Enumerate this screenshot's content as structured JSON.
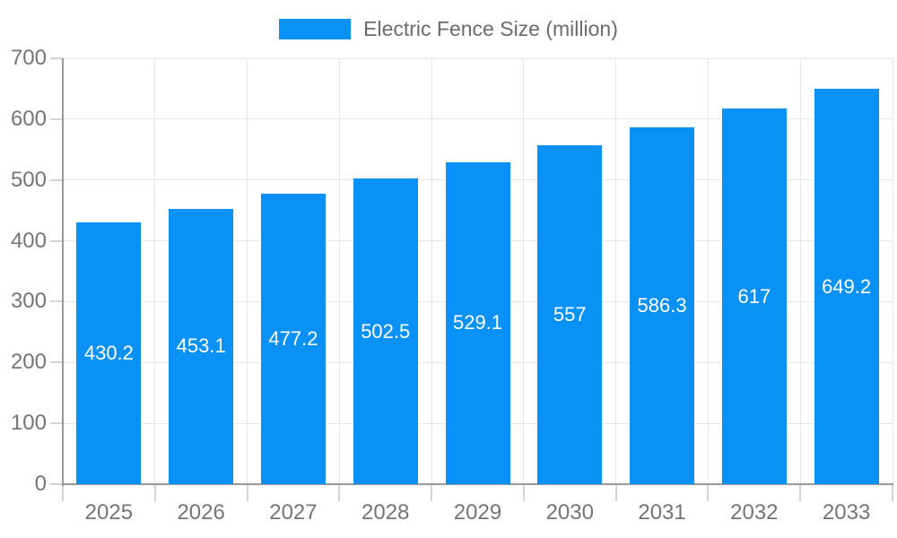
{
  "chart_data": {
    "type": "bar",
    "title": "Electric Fence Size (million)",
    "categories": [
      "2025",
      "2026",
      "2027",
      "2028",
      "2029",
      "2030",
      "2031",
      "2032",
      "2033"
    ],
    "values": [
      430.2,
      453.1,
      477.2,
      502.5,
      529.1,
      557,
      586.3,
      617,
      649.2
    ],
    "value_labels": [
      "430.2",
      "453.1",
      "477.2",
      "502.5",
      "529.1",
      "557",
      "586.3",
      "617",
      "649.2"
    ],
    "xlabel": "",
    "ylabel": "",
    "ylim": [
      0,
      700
    ],
    "ytick_step": 100,
    "ytick_labels": [
      "0",
      "100",
      "200",
      "300",
      "400",
      "500",
      "600",
      "700"
    ],
    "grid": true,
    "legend_position": "top-center",
    "colors": {
      "bar": "#0991f5",
      "bar_value_text": "#ffffff",
      "axis_text": "#757575",
      "legend_text": "#6b6b6b",
      "grid_line": "#e6e6e6",
      "axis_line": "#9a9a9a",
      "tick": "#d4d4d4",
      "background": "#ffffff"
    }
  }
}
